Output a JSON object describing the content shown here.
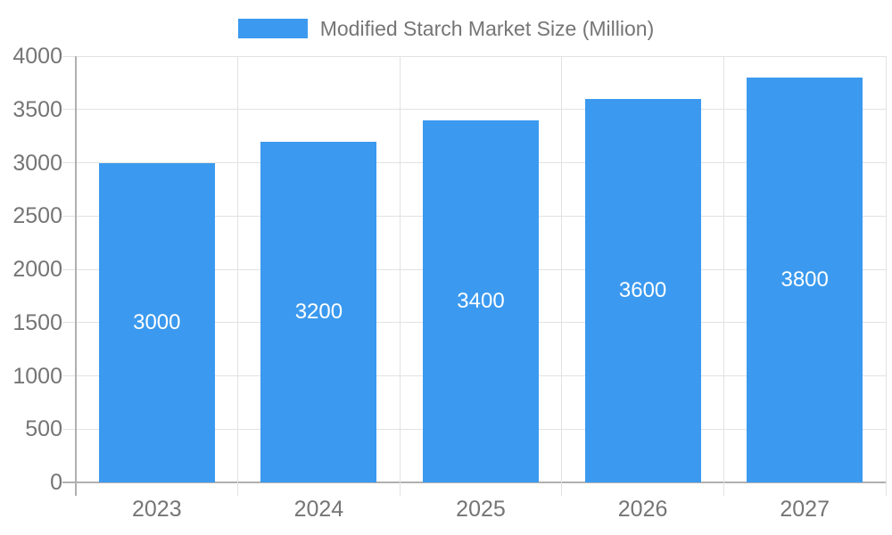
{
  "legend": {
    "label": "Modified Starch Market Size (Million)"
  },
  "chart_data": {
    "type": "bar",
    "title": "",
    "xlabel": "",
    "ylabel": "",
    "categories": [
      "2023",
      "2024",
      "2025",
      "2026",
      "2027"
    ],
    "series": [
      {
        "name": "Modified Starch Market Size (Million)",
        "values": [
          3000,
          3200,
          3400,
          3600,
          3800
        ]
      }
    ],
    "data_labels": [
      "3000",
      "3200",
      "3400",
      "3600",
      "3800"
    ],
    "ylim": [
      0,
      4000
    ],
    "yticks": [
      0,
      500,
      1000,
      1500,
      2000,
      2500,
      3000,
      3500,
      4000
    ],
    "ytick_labels": [
      "0",
      "500",
      "1000",
      "1500",
      "2000",
      "2500",
      "3000",
      "3500",
      "4000"
    ],
    "grid": true,
    "legend_position": "top",
    "bar_label_position": "inside-middle"
  },
  "colors": {
    "bar": "#3B9AEF",
    "bar_label": "#FFFFFF",
    "axis_text": "#757575",
    "legend_text": "#757575",
    "gridline": "#E2E2E2",
    "axis_line": "#B0B0B0",
    "background": "#FFFFFF"
  }
}
